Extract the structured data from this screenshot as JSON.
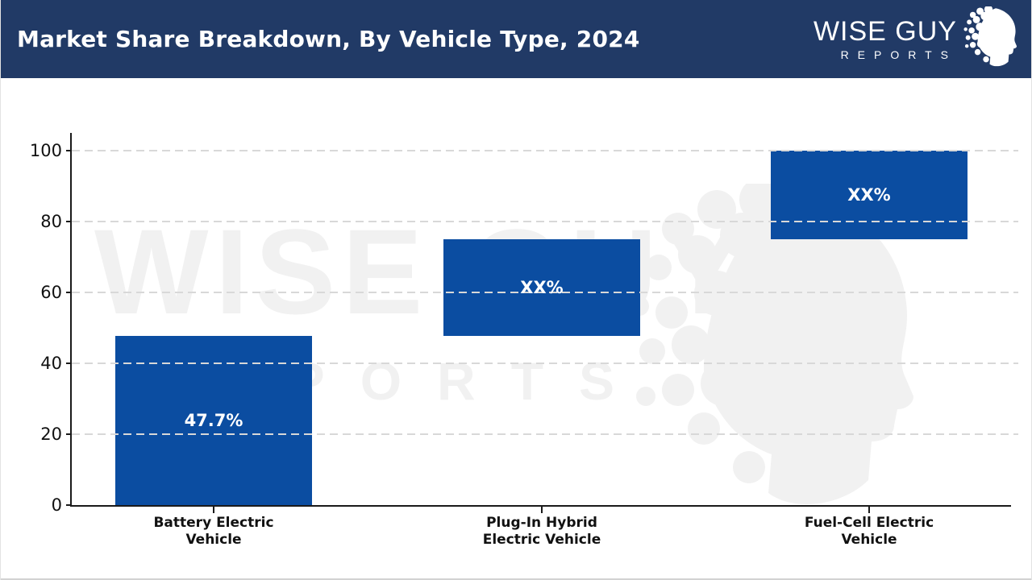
{
  "header": {
    "title": "Market Share Breakdown, By Vehicle Type, 2024",
    "bg_color": "#213A66",
    "logo": {
      "wordmark": "WISE GUY",
      "subtext": "REPORTS"
    }
  },
  "watermark": {
    "line1": "WISE GUY",
    "line2": "REPORTS"
  },
  "chart_data": {
    "type": "bar",
    "subtype": "waterfall",
    "title": "Market Share Breakdown, By Vehicle Type, 2024",
    "categories": [
      "Battery Electric Vehicle",
      "Plug-In Hybrid Electric Vehicle",
      "Fuel-Cell Electric Vehicle"
    ],
    "category_lines": [
      [
        "Battery Electric",
        "Vehicle"
      ],
      [
        "Plug-In Hybrid",
        "Electric Vehicle"
      ],
      [
        "Fuel-Cell Electric",
        "Vehicle"
      ]
    ],
    "segments": [
      {
        "category": "Battery Electric Vehicle",
        "start": 0,
        "end": 47.7,
        "label": "47.7%"
      },
      {
        "category": "Plug-In Hybrid Electric Vehicle",
        "start": 47.7,
        "end": 74.9,
        "label": "XX%"
      },
      {
        "category": "Fuel-Cell Electric Vehicle",
        "start": 74.9,
        "end": 100,
        "label": "XX%"
      }
    ],
    "ylim": [
      0,
      100
    ],
    "yticks": [
      0,
      20,
      40,
      60,
      80,
      100
    ],
    "xlabel": "",
    "ylabel": "",
    "grid": "horizontal-dashed",
    "legend": "none",
    "bar_color": "#0B4DA1",
    "value_label_color": "#FFFFFF",
    "axis_color": "#1a1a1a",
    "gridline_color": "#d8d8d8"
  }
}
